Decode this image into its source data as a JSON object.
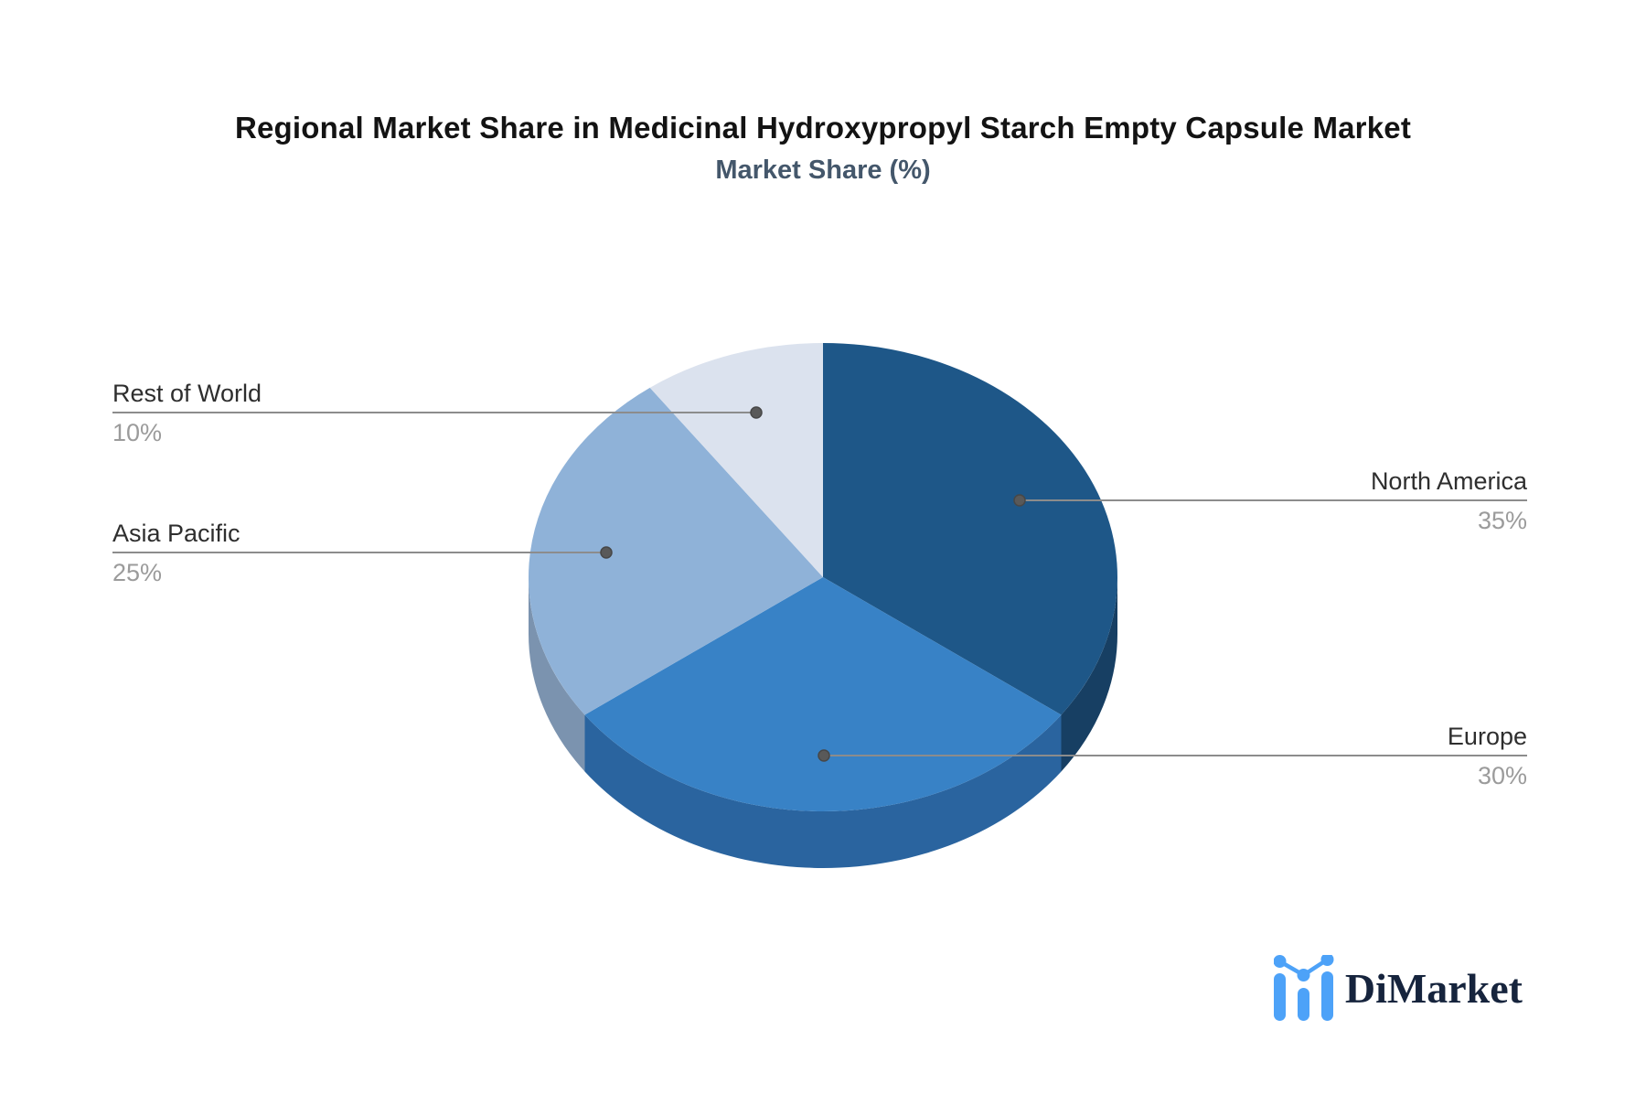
{
  "title": "Regional Market Share in Medicinal Hydroxypropyl Starch Empty Capsule Market",
  "subtitle": "Market Share (%)",
  "chart_data": {
    "type": "pie",
    "title": "Regional Market Share in Medicinal Hydroxypropyl Starch Empty Capsule Market",
    "subtitle": "Market Share (%)",
    "unit": "%",
    "style": "3d-pie",
    "start_angle": "12-oclock",
    "direction": "clockwise",
    "categories": [
      "North America",
      "Europe",
      "Asia Pacific",
      "Rest of World"
    ],
    "values": [
      35,
      30,
      25,
      10
    ],
    "pct_labels": [
      "35%",
      "30%",
      "25%",
      "10%"
    ],
    "slice_colors": [
      "#1e5788",
      "#3882c6",
      "#8fb2d8",
      "#dbe2ee"
    ],
    "side_colors": [
      "#173f63",
      "#2a649f",
      "#7b93af",
      "#c3cddc"
    ],
    "legend_position": "callout-labels",
    "grid": false
  },
  "callouts": {
    "line_color": "#8c8c8c",
    "dot_color": "#595959",
    "label_color": "#2e2e2e",
    "percent_color": "#9b9b9b"
  },
  "logo": {
    "text": "DiMarket",
    "icon": "bar-chart-trend-icon",
    "icon_color": "#4da2f8",
    "text_color": "#16243d"
  }
}
